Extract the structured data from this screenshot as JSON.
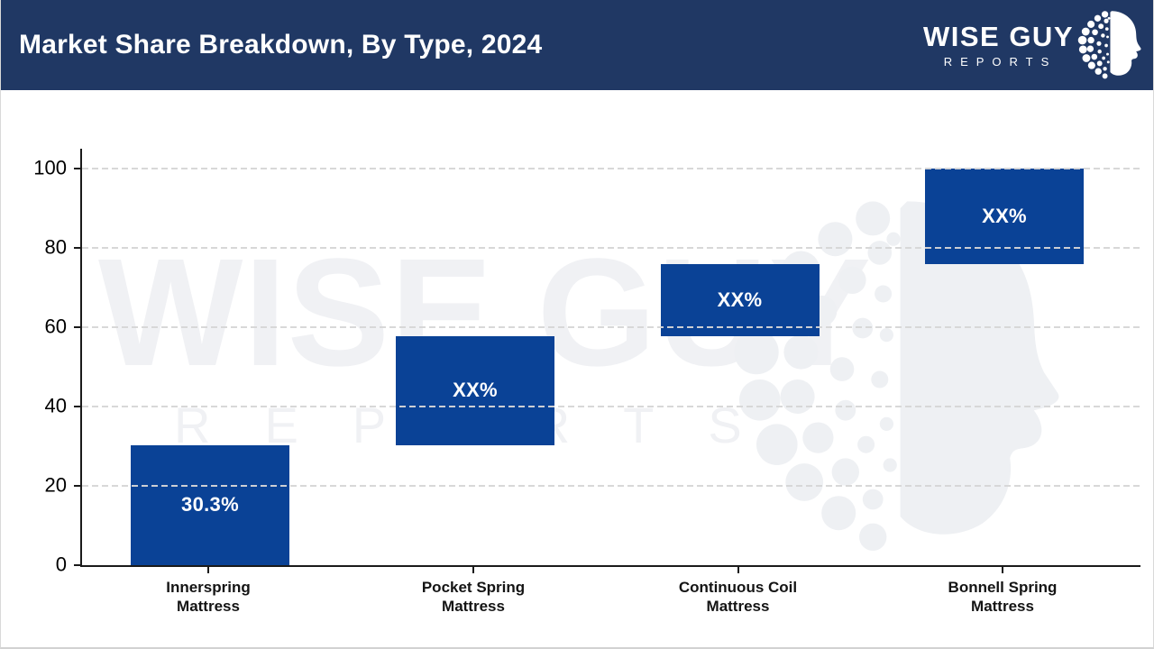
{
  "header": {
    "title": "Market Share Breakdown, By Type, 2024",
    "logo": {
      "wordmark": "WISE GUY",
      "subtext": "REPORTS"
    }
  },
  "watermark": {
    "wordmark": "WISE GUY",
    "subtext": "REPORTS"
  },
  "colors": {
    "header_bg": "#203864",
    "bar": "#0a4296",
    "bar_label": "#ffffff",
    "gridline": "#d9d9d9",
    "axis": "#1a1a1a",
    "watermark": "#f0f1f4"
  },
  "chart_data": {
    "type": "bar",
    "variant": "waterfall",
    "title": "Market Share Breakdown, By Type, 2024",
    "xlabel": "",
    "ylabel": "",
    "ylim": [
      0,
      100
    ],
    "yticks": [
      0,
      20,
      40,
      60,
      80,
      100
    ],
    "grid": "dashed-horizontal",
    "legend": "none",
    "categories": [
      "Innerspring Mattress",
      "Pocket Spring Mattress",
      "Continuous Coil Mattress",
      "Bonnell Spring Mattress"
    ],
    "segments": [
      {
        "category": "Innerspring Mattress",
        "start": 0,
        "end": 30.3,
        "label": "30.3%"
      },
      {
        "category": "Pocket Spring Mattress",
        "start": 30.3,
        "end": 57.7,
        "label": "XX%"
      },
      {
        "category": "Continuous Coil Mattress",
        "start": 57.7,
        "end": 75.9,
        "label": "XX%"
      },
      {
        "category": "Bonnell Spring Mattress",
        "start": 75.9,
        "end": 100,
        "label": "XX%"
      }
    ]
  }
}
